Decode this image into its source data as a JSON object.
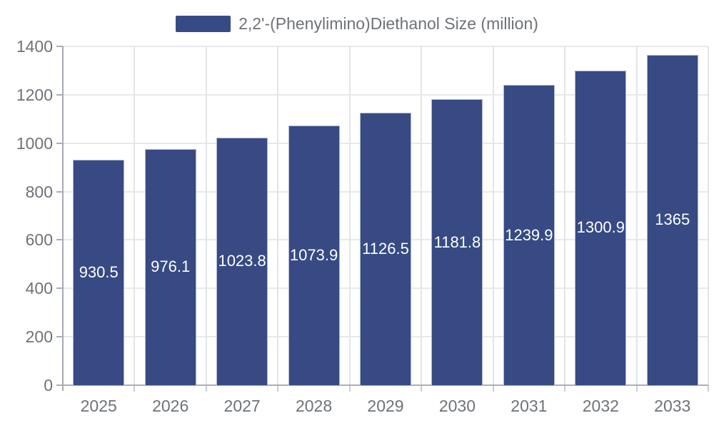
{
  "page": {
    "background_color": "#ffffff"
  },
  "legend": {
    "label": "2,2'-(Phenylimino)Diethanol Size (million)",
    "swatch_color": "#374A83",
    "position": "top-center"
  },
  "chart_data": {
    "type": "bar",
    "title": "2,2'-(Phenylimino)Diethanol Size (million)",
    "series_name": "2,2'-(Phenylimino)Diethanol Size (million)",
    "categories": [
      "2025",
      "2026",
      "2027",
      "2028",
      "2029",
      "2030",
      "2031",
      "2032",
      "2033"
    ],
    "values": [
      930.5,
      976.1,
      1023.8,
      1073.9,
      1126.5,
      1181.8,
      1239.9,
      1300.9,
      1365
    ],
    "value_labels": [
      "930.5",
      "976.1",
      "1023.8",
      "1073.9",
      "1126.5",
      "1181.8",
      "1239.9",
      "1300.9",
      "1365"
    ],
    "xlabel": "",
    "ylabel": "",
    "ylim": [
      0,
      1400
    ],
    "yticks": [
      0,
      200,
      400,
      600,
      800,
      1000,
      1200,
      1400
    ],
    "grid": true,
    "legend_position": "top",
    "bar_color": "#374A83",
    "bar_border_color": "#AFB7D2",
    "value_label_color": "#ffffff",
    "axis_text_color": "#6E7277"
  }
}
